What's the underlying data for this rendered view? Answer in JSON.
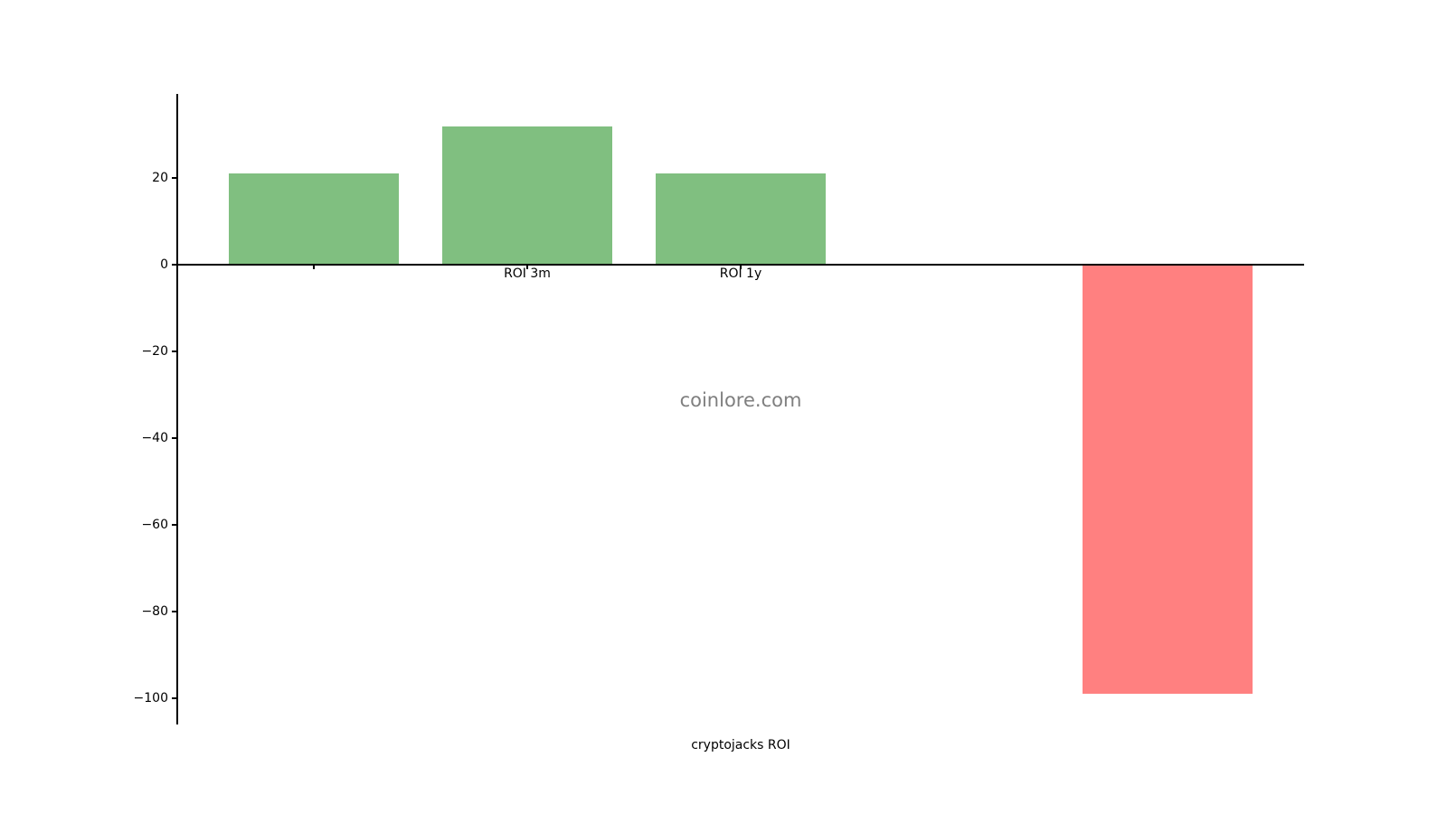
{
  "watermark": {
    "text": "coinlore.com",
    "color": "#7f7f7f"
  },
  "chart_data": {
    "type": "bar",
    "title": "cryptojacks ROI",
    "xlabel": "cryptojacks ROI",
    "ylabel": "",
    "categories": [
      "",
      "ROI 3m",
      "ROI 1y",
      "",
      ""
    ],
    "values": [
      21,
      32,
      21,
      0,
      -99
    ],
    "bar_colors": [
      "#80bf80",
      "#80bf80",
      "#80bf80",
      "#80bf80",
      "#ff8080"
    ],
    "positive_color": "#80bf80",
    "negative_color": "#ff8080",
    "axis_color": "#000000",
    "grid": false,
    "legend": null,
    "ylim": [
      -106,
      39.4
    ],
    "xlim": [
      -0.64,
      4.64
    ],
    "bar_width_fraction": 0.8,
    "yticks": [
      {
        "value": 20,
        "label": "20"
      },
      {
        "value": 0,
        "label": "0"
      },
      {
        "value": -20,
        "label": "−20"
      },
      {
        "value": -40,
        "label": "−40"
      },
      {
        "value": -60,
        "label": "−60"
      },
      {
        "value": -80,
        "label": "−80"
      },
      {
        "value": -100,
        "label": "−100"
      }
    ],
    "xticks": [
      {
        "slot": 0,
        "label": ""
      },
      {
        "slot": 1,
        "label": "ROI 3m"
      },
      {
        "slot": 2,
        "label": "ROI 1y"
      }
    ]
  }
}
